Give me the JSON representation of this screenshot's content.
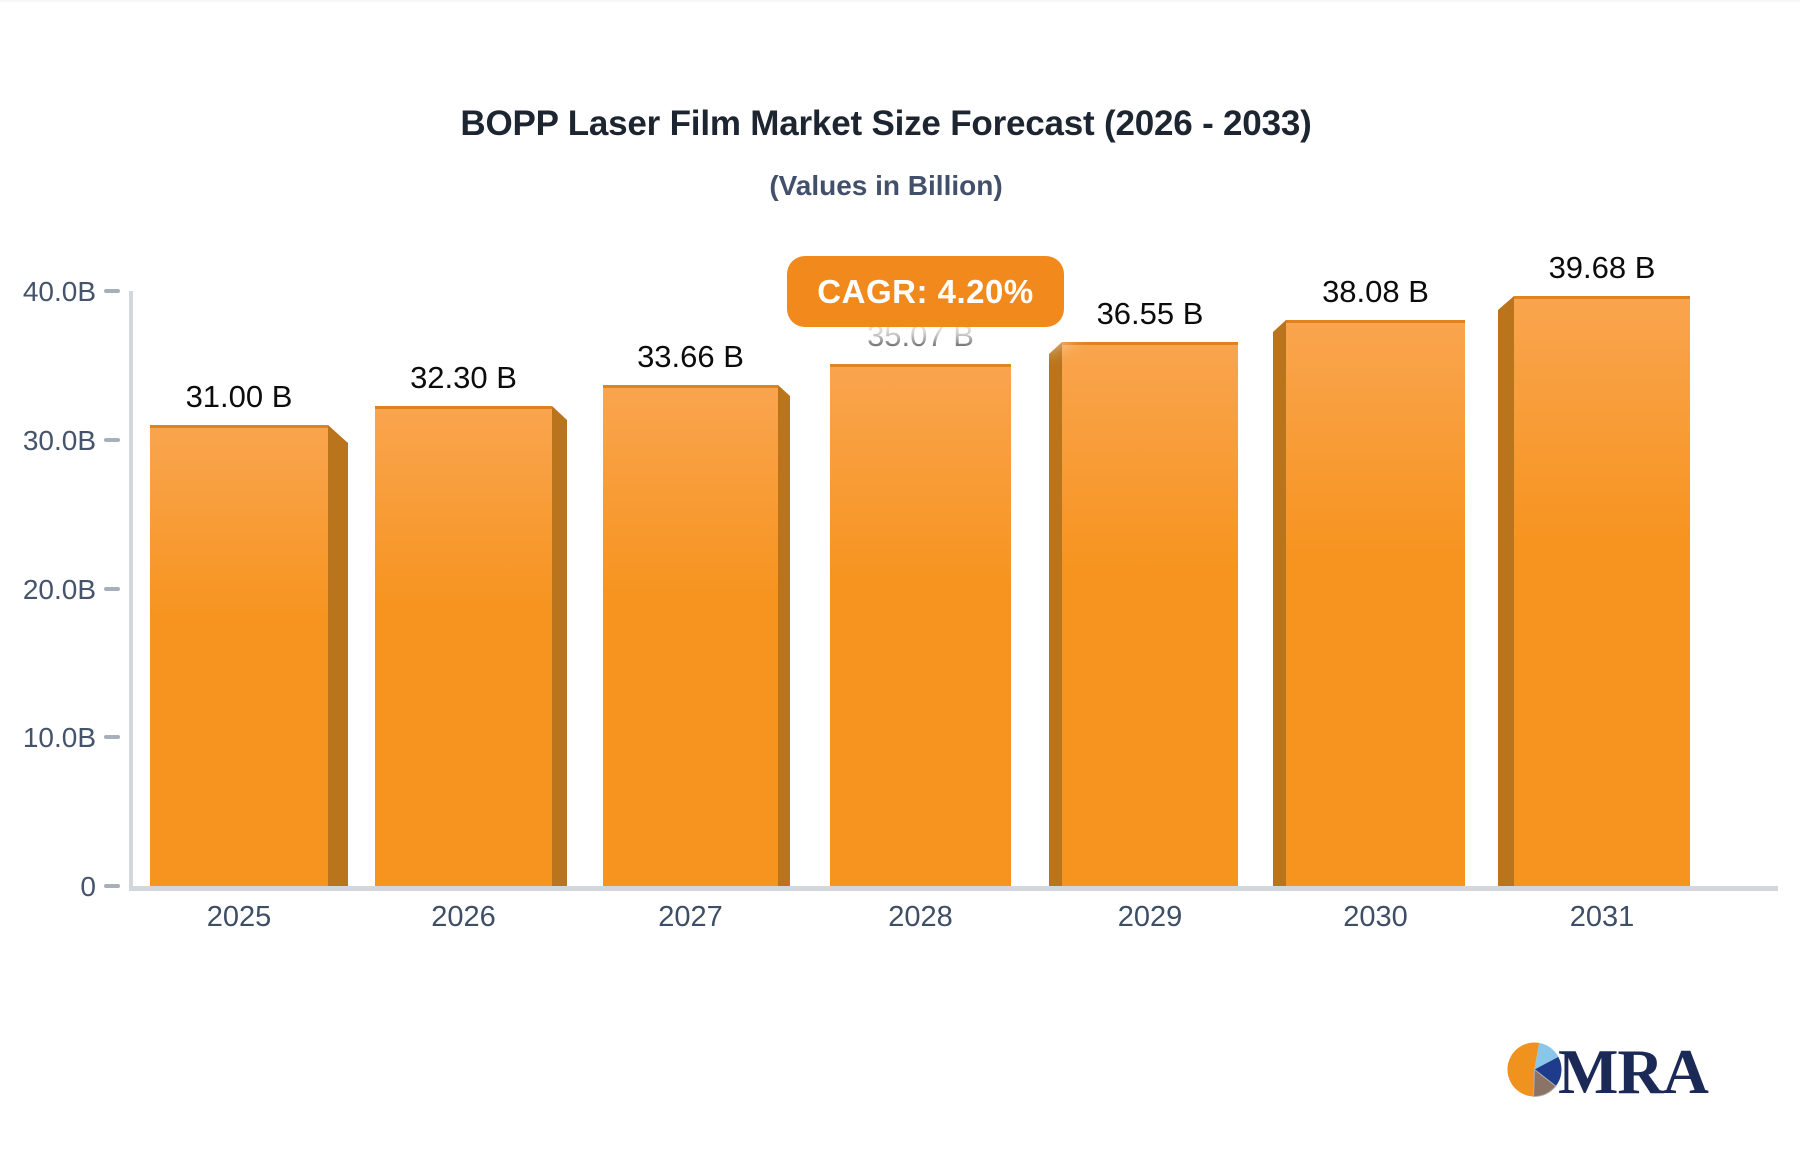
{
  "chart_data": {
    "type": "bar",
    "title": "BOPP Laser Film Market Size Forecast (2026 - 2033)",
    "subtitle": "(Values in Billion)",
    "annotation": "CAGR: 4.20%",
    "categories": [
      "2025",
      "2026",
      "2027",
      "2028",
      "2029",
      "2030",
      "2031"
    ],
    "values": [
      31.0,
      32.3,
      33.66,
      35.07,
      36.55,
      38.08,
      39.68
    ],
    "value_labels": [
      "31.00 B",
      "32.30 B",
      "33.66 B",
      "35.07 B",
      "36.55 B",
      "38.08 B",
      "39.68 B"
    ],
    "ylim": [
      0,
      40
    ],
    "yticks": {
      "values": [
        0,
        10,
        20,
        30,
        40
      ],
      "labels": [
        "0",
        "10.0B",
        "20.0B",
        "30.0B",
        "40.0B"
      ]
    },
    "grid": false,
    "legend": false,
    "bar_style": "3d-bevel",
    "colors": {
      "bar_face_top": "#F9A44E",
      "bar_face": "#F7941F",
      "bar_side": "#B9741C",
      "bar_top_edge": "#E1831D",
      "badge": "#F2891D",
      "axis": "#D3D6DB",
      "tick": "#A8AFB9",
      "y_label": "#45536B",
      "x_label": "#3E4E66",
      "value_label": "#0C0C0C",
      "title": "#1D2531",
      "subtitle": "#42506B"
    }
  },
  "logo": {
    "text": "MRA",
    "icon": "pie-chart-icon",
    "text_color": "#1B2956",
    "pie_colors": {
      "orange": "#F0921E",
      "light_blue": "#8AC6E9",
      "navy": "#1F3C8C",
      "taupe": "#8B7366"
    }
  }
}
